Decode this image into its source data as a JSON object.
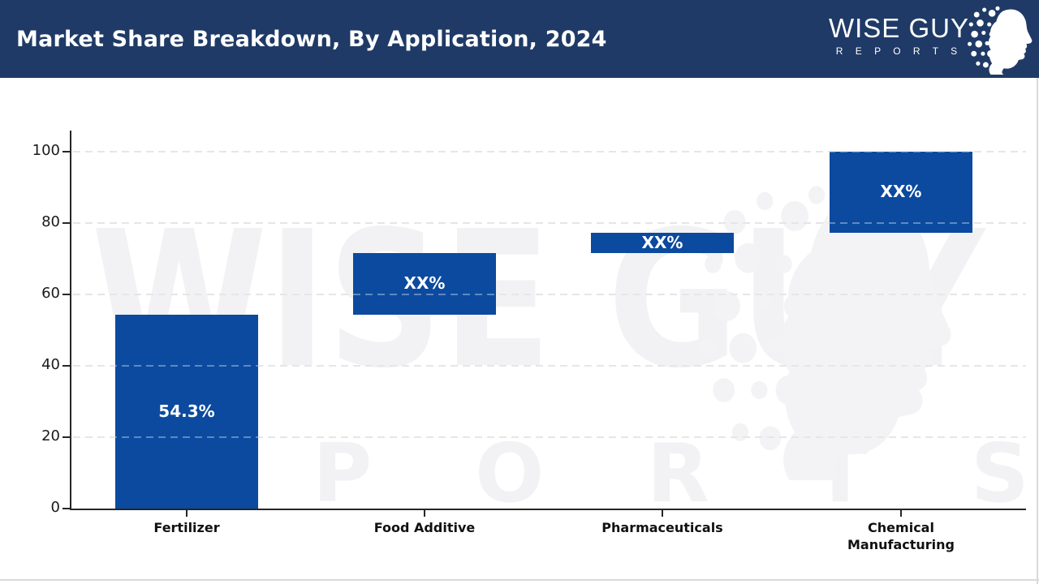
{
  "header": {
    "title": "Market Share Breakdown, By Application, 2024",
    "logo_line1": "WISE GUY",
    "logo_line2": "R E P O R T S"
  },
  "watermark": {
    "line1": "WISE GUY",
    "line2": "E P O R T S"
  },
  "chart_data": {
    "type": "bar",
    "subtype": "waterfall",
    "title": "Market Share Breakdown, By Application, 2024",
    "categories": [
      "Fertilizer",
      "Food Additive",
      "Pharmaceuticals",
      "Chemical Manufacturing"
    ],
    "segments": [
      {
        "category": "Fertilizer",
        "start": 0,
        "end": 54.3,
        "label": "54.3%"
      },
      {
        "category": "Food Additive",
        "start": 54.3,
        "end": 71.6,
        "label": "XX%"
      },
      {
        "category": "Pharmaceuticals",
        "start": 71.6,
        "end": 77.2,
        "label": "XX%"
      },
      {
        "category": "Chemical Manufacturing",
        "start": 77.2,
        "end": 100,
        "label": "XX%"
      }
    ],
    "y_ticks": [
      0,
      20,
      40,
      60,
      80,
      100
    ],
    "ylim": [
      0,
      105
    ],
    "grid": {
      "axis": "y",
      "style": "dashed"
    },
    "legend": null,
    "colors": {
      "bar": "#0B4A9F",
      "header_bg": "#1F3A66",
      "grid": "#D9D9D9",
      "axis": "#262626",
      "bar_label": "#FFFFFF",
      "watermark": "#F2F2F4"
    }
  }
}
